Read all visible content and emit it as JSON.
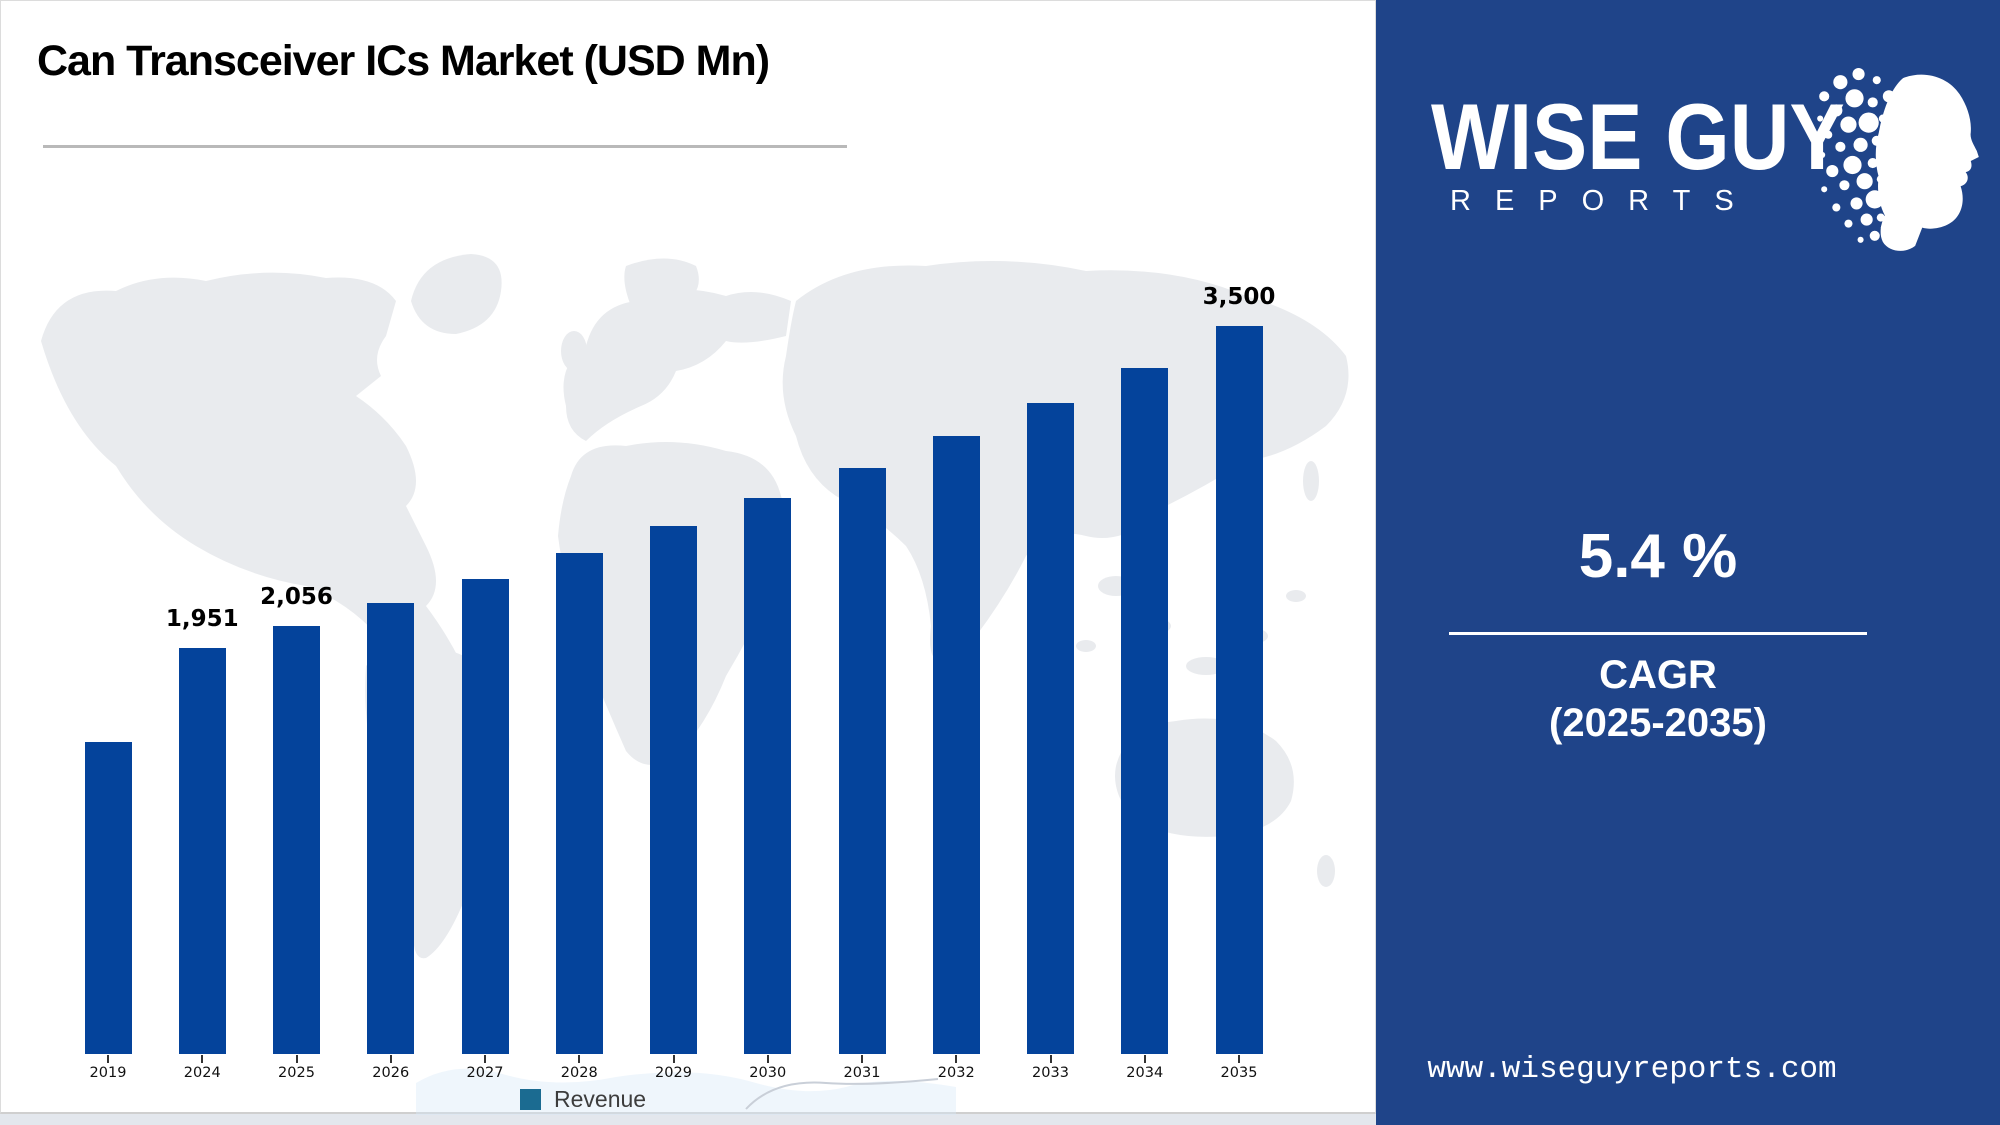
{
  "title": "Can Transceiver ICs Market (USD Mn)",
  "chart_data": {
    "type": "bar",
    "title": "Can Transceiver ICs Market (USD Mn)",
    "categories": [
      "2019",
      "2024",
      "2025",
      "2026",
      "2027",
      "2028",
      "2029",
      "2030",
      "2031",
      "2032",
      "2033",
      "2034",
      "2035"
    ],
    "values": [
      1500,
      1951,
      2056,
      2167,
      2284,
      2407,
      2537,
      2674,
      2819,
      2971,
      3131,
      3300,
      3500
    ],
    "data_labels": [
      "",
      "1,951",
      "2,056",
      "",
      "",
      "",
      "",
      "",
      "",
      "",
      "",
      "",
      "3,500"
    ],
    "xlabel": "",
    "ylabel": "",
    "ylim": [
      0,
      3500
    ],
    "grid": false,
    "legend_label": "Revenue",
    "legend_position": "bottom-center",
    "bar_color": "#04439b",
    "legend_swatch_color": "#1b6b91"
  },
  "sidebar": {
    "logo_line1": "WISE GUY",
    "logo_line2": "REPORTS",
    "cagr_value": "5.4 %",
    "cagr_label": "CAGR",
    "cagr_range": "(2025-2035)",
    "website": "www.wiseguyreports.com",
    "background_color": "#1f4489"
  }
}
